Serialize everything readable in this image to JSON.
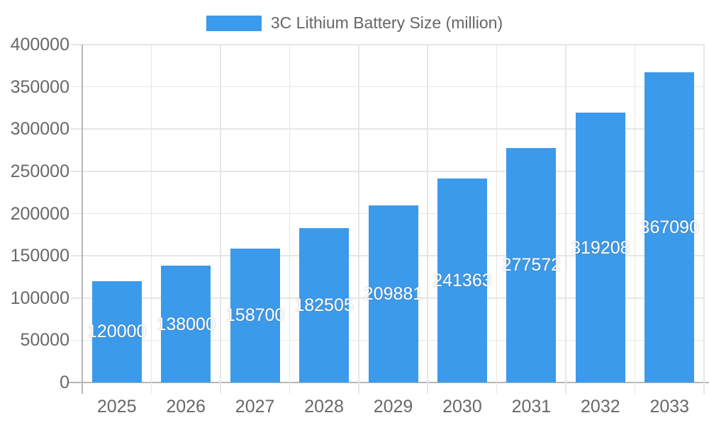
{
  "legend": {
    "label": "3C Lithium Battery Size (million)",
    "swatch_color": "#3C9AEB"
  },
  "chart_data": {
    "type": "bar",
    "title": "3C Lithium Battery Size (million)",
    "categories": [
      "2025",
      "2026",
      "2027",
      "2028",
      "2029",
      "2030",
      "2031",
      "2032",
      "2033"
    ],
    "series": [
      {
        "name": "3C Lithium Battery Size (million)",
        "values": [
          120000,
          138000,
          158700,
          182505,
          209881,
          241363,
          277572,
          319208,
          367090
        ],
        "color": "#3C9AEB"
      }
    ],
    "value_labels": [
      "120000",
      "138000",
      "158700",
      "182505",
      "209881",
      "241363",
      "277572",
      "319208",
      "367090"
    ],
    "xlabel": "",
    "ylabel": "",
    "ylim": [
      0,
      400000
    ],
    "yticks": [
      0,
      50000,
      100000,
      150000,
      200000,
      250000,
      300000,
      350000,
      400000
    ],
    "ytick_labels": [
      "0",
      "50000",
      "100000",
      "150000",
      "200000",
      "250000",
      "300000",
      "350000",
      "400000"
    ],
    "grid": true,
    "legend_position": "top",
    "value_label_position": "inside-center",
    "value_label_color": "#FFFFFF",
    "axis_text_color": "#686868",
    "grid_color": "#E6E6E6",
    "axis_line_color": "#B6B6B6",
    "background_color": "#FFFFFF"
  }
}
